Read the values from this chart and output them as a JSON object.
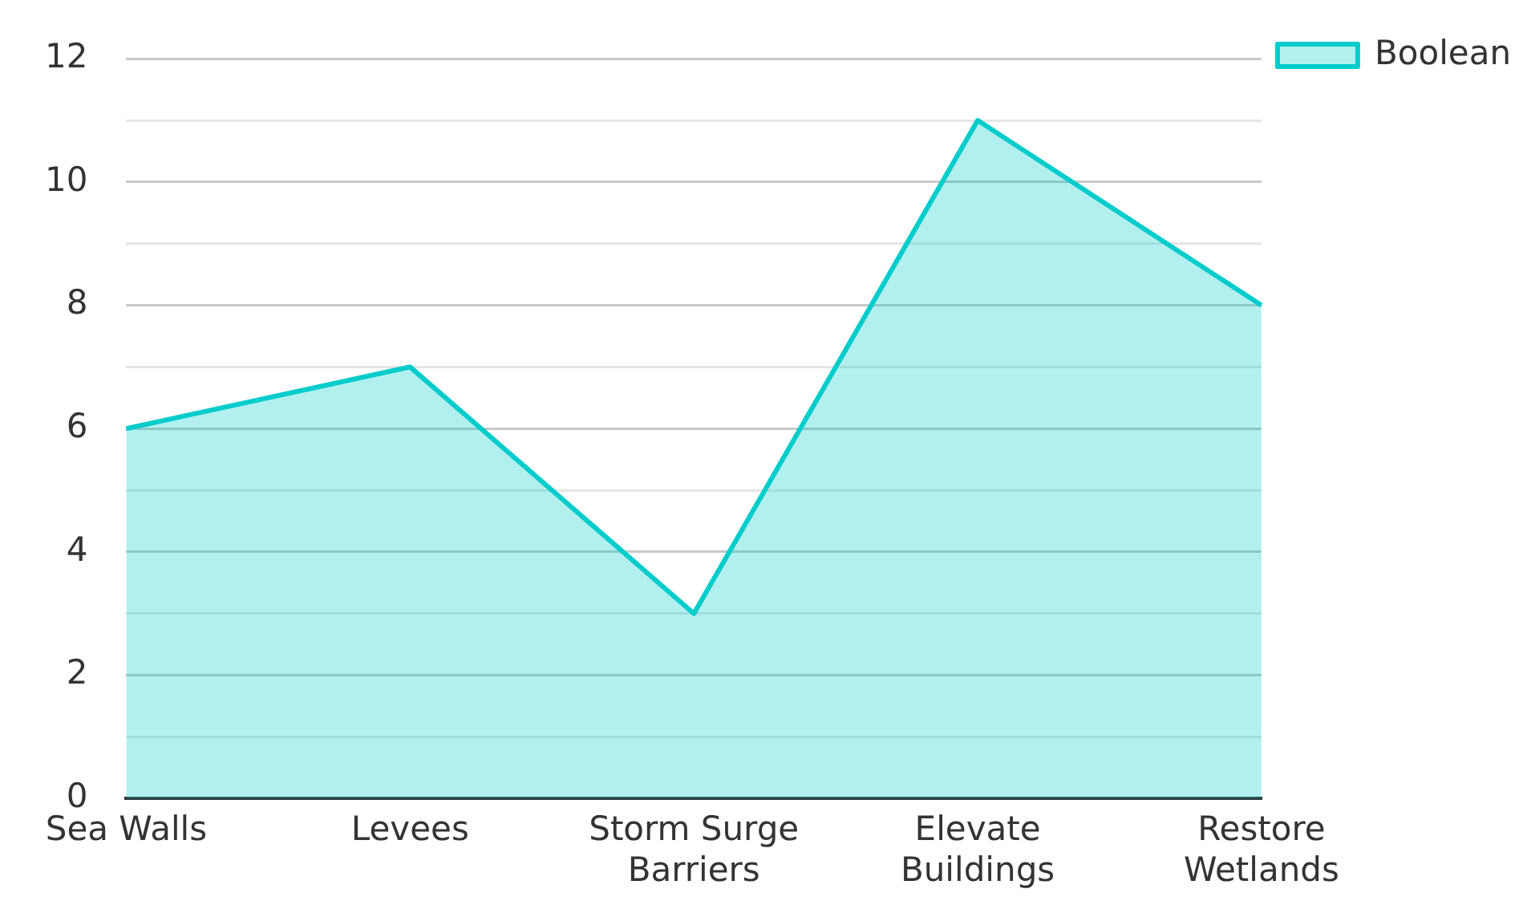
{
  "chart_data": {
    "type": "area",
    "categories": [
      "Sea Walls",
      "Levees",
      "Storm Surge Barriers",
      "Elevate Buildings",
      "Restore Wetlands"
    ],
    "series": [
      {
        "name": "Boolean",
        "color": "#00cccc",
        "values": [
          6,
          7,
          3,
          11,
          8
        ]
      }
    ],
    "ylim": [
      0,
      12
    ],
    "yticks": [
      0,
      {
        "value": 1,
        "label": null
      },
      2,
      {
        "value": 3,
        "label": null
      },
      4,
      {
        "value": 5,
        "label": null
      },
      6,
      {
        "value": 7,
        "label": null
      },
      8,
      {
        "value": 9,
        "label": null
      },
      10,
      {
        "value": 11,
        "label": null
      },
      12
    ],
    "grid": "y",
    "legend": "top right",
    "marker": "none",
    "line_style": "solid"
  }
}
